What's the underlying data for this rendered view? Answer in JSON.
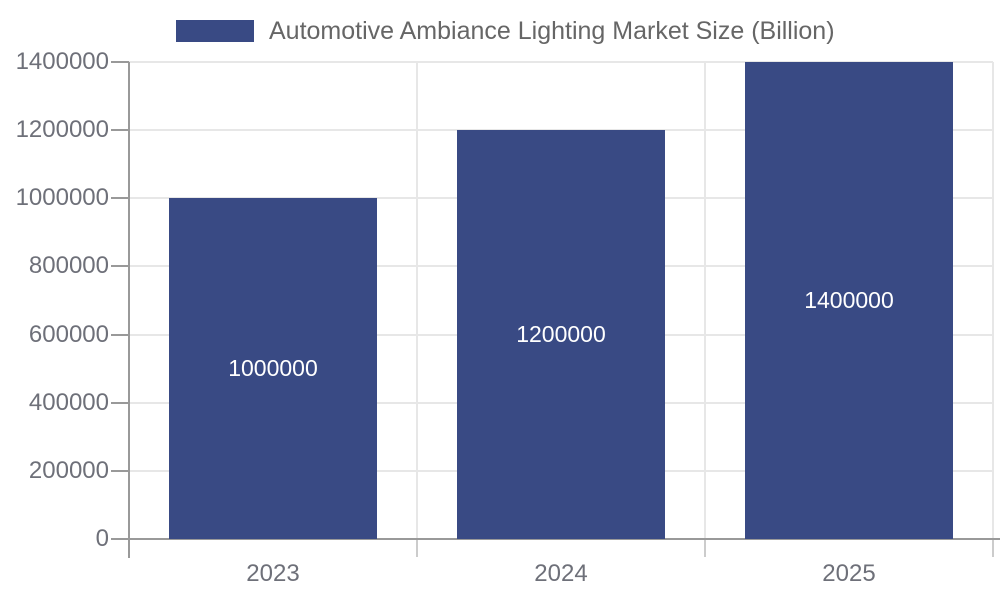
{
  "chart_data": {
    "type": "bar",
    "title": "",
    "legend_label": "Automotive Ambiance Lighting Market Size (Billion)",
    "categories": [
      "2023",
      "2024",
      "2025"
    ],
    "series": [
      {
        "name": "Automotive Ambiance Lighting Market Size (Billion)",
        "values": [
          1000000,
          1200000,
          1400000
        ],
        "labels": [
          "1000000",
          "1200000",
          "1400000"
        ]
      }
    ],
    "xlabel": "",
    "ylabel": "",
    "ylim": [
      0,
      1400000
    ],
    "ytick_interval": 200000,
    "ytick_labels": [
      "0",
      "200000",
      "400000",
      "600000",
      "800000",
      "1000000",
      "1200000",
      "1400000"
    ],
    "grid": true,
    "legend_position": "top-center",
    "bar_label_position": "inside-middle"
  },
  "colors": {
    "bar": "#394A84",
    "axis_line": "#999999",
    "boundary_tick": "#CCCCCC",
    "gridline": "#E7E7E7",
    "axis_label": "#6E7079",
    "legend_text": "#666666",
    "bar_label": "#FFFFFF",
    "background": "#FFFFFF"
  }
}
